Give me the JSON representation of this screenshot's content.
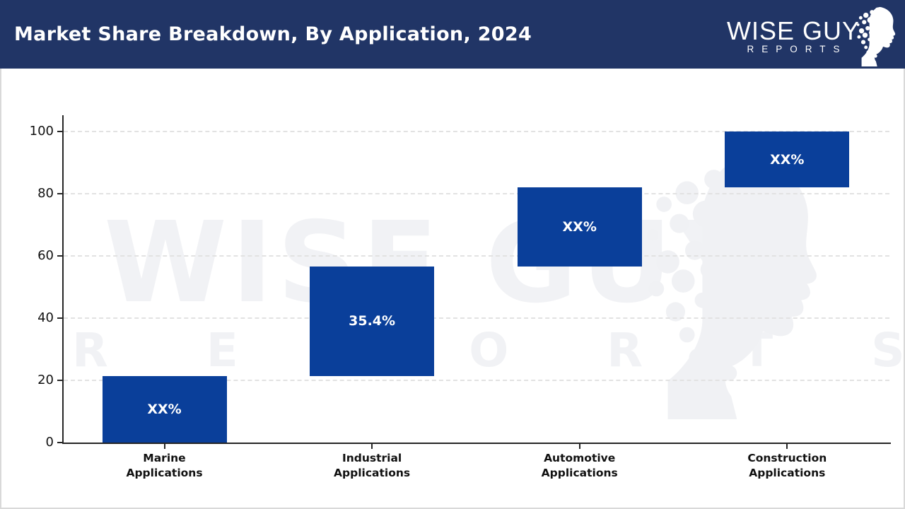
{
  "header": {
    "title": "Market Share Breakdown, By Application, 2024",
    "logo": {
      "name": "WISE GUY",
      "sub": "REPORTS"
    },
    "background_color": "#213566"
  },
  "watermark": {
    "name": "WISE GUY",
    "sub": "R E P O R T S",
    "color": "#f1f2f5"
  },
  "chart_data": {
    "type": "bar",
    "subtype": "waterfall",
    "title": "Market Share Breakdown, By Application, 2024",
    "xlabel": "",
    "ylabel": "",
    "ylim": [
      0,
      100
    ],
    "yticks": [
      0,
      20,
      40,
      60,
      80,
      100
    ],
    "grid": true,
    "grid_style": "dashed",
    "bar_color": "#0a3f9a",
    "value_label_color": "#ffffff",
    "categories": [
      {
        "line1": "Marine",
        "line2": "Applications"
      },
      {
        "line1": "Industrial",
        "line2": "Applications"
      },
      {
        "line1": "Automotive",
        "line2": "Applications"
      },
      {
        "line1": "Construction",
        "line2": "Applications"
      }
    ],
    "bars": [
      {
        "category": "Marine Applications",
        "start": 0,
        "end": 21.3,
        "value_label": "XX%"
      },
      {
        "category": "Industrial Applications",
        "start": 21.3,
        "end": 56.7,
        "value_label": "35.4%"
      },
      {
        "category": "Automotive Applications",
        "start": 56.7,
        "end": 82.0,
        "value_label": "XX%"
      },
      {
        "category": "Construction Applications",
        "start": 82.0,
        "end": 100.0,
        "value_label": "XX%"
      }
    ]
  }
}
